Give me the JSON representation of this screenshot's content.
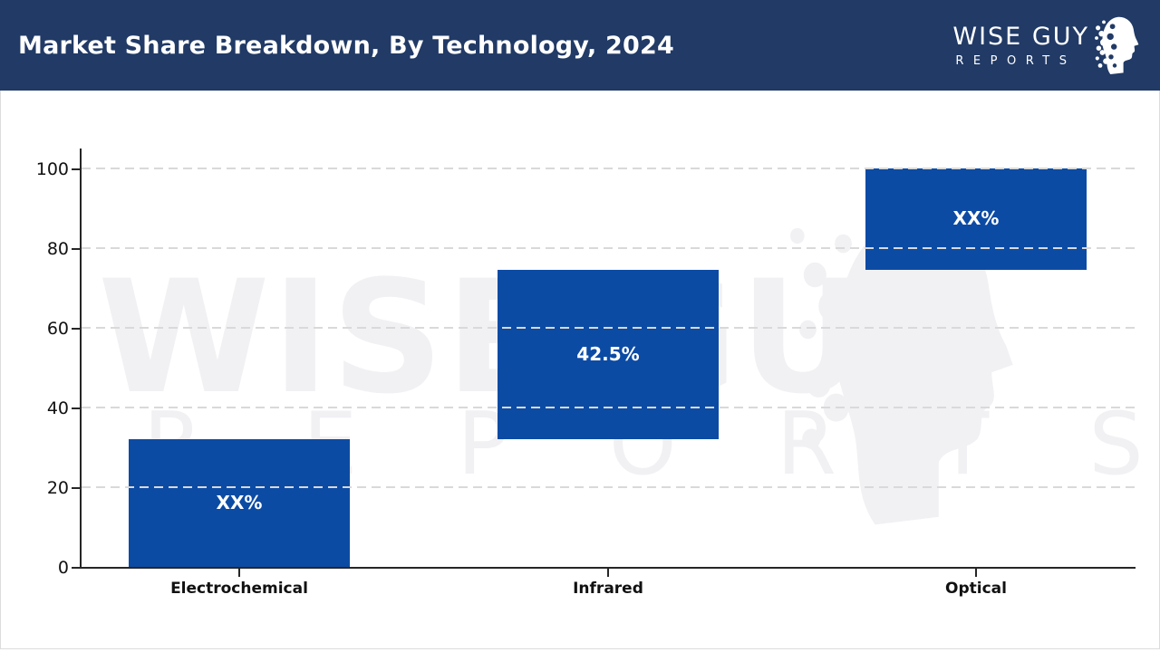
{
  "header": {
    "title": "Market Share Breakdown, By Technology, 2024",
    "logo": {
      "line1": "WISE GUY",
      "line2": "REPORTS"
    }
  },
  "watermark": {
    "line1": "WISE GUY",
    "line2": "R E P O R T S"
  },
  "chart_data": {
    "type": "bar",
    "subtype": "waterfall-stacked-segments",
    "title": "Market Share Breakdown, By Technology, 2024",
    "categories": [
      "Electrochemical",
      "Infrared",
      "Optical"
    ],
    "segments": [
      {
        "category": "Electrochemical",
        "start": 0,
        "end": 32,
        "label": "XX%"
      },
      {
        "category": "Infrared",
        "start": 32,
        "end": 74.5,
        "label": "42.5%"
      },
      {
        "category": "Optical",
        "start": 74.5,
        "end": 100,
        "label": "XX%"
      }
    ],
    "yticks": [
      0,
      20,
      40,
      60,
      80,
      100
    ],
    "ylim": [
      0,
      105
    ],
    "xlabel": "",
    "ylabel": "",
    "grid": "horizontal-dashed",
    "legend": "none",
    "bar_color": "#0c4ba4"
  },
  "colors": {
    "header_bg": "#213a66",
    "bar": "#0c4ba4",
    "grid": "#d9d9d9",
    "axis": "#262626",
    "watermark": "#f1f1f4"
  }
}
